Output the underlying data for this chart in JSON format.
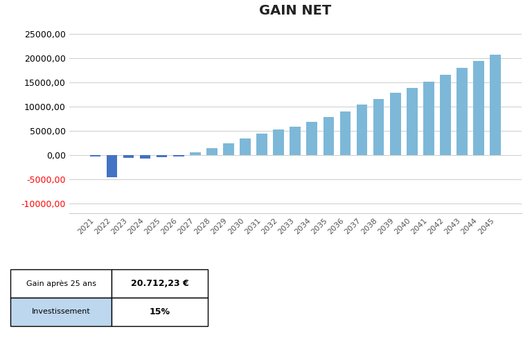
{
  "title": "GAIN NET",
  "years": [
    2021,
    2022,
    2023,
    2024,
    2025,
    2026,
    2027,
    2028,
    2029,
    2030,
    2031,
    2032,
    2033,
    2034,
    2035,
    2036,
    2037,
    2038,
    2039,
    2040,
    2041,
    2042,
    2043,
    2044,
    2045
  ],
  "values": [
    -300,
    -4600,
    -500,
    -700,
    -400,
    -200,
    600,
    1500,
    2500,
    3400,
    4500,
    5350,
    5800,
    6800,
    7900,
    9000,
    10400,
    11500,
    12800,
    13900,
    15100,
    16500,
    17900,
    19400,
    20712
  ],
  "bar_color_positive": "#7DB8D8",
  "bar_color_negative": "#4472C4",
  "yticks": [
    -10000,
    -5000,
    0,
    5000,
    10000,
    15000,
    20000,
    25000
  ],
  "ylim": [
    -12000,
    27000
  ],
  "background_color": "#FFFFFF",
  "title_fontsize": 14,
  "table_label1": "Gain après 25 ans",
  "table_value1": "20.712,23 €",
  "table_label2": "Investissement",
  "table_value2": "15%",
  "table_color_row2_left": "#BDD7EE"
}
